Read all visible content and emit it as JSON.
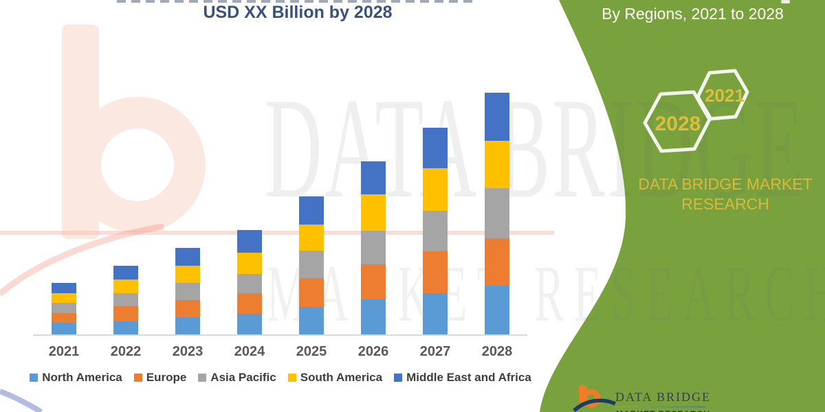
{
  "title": {
    "line2": "USD XX Billion by 2028"
  },
  "right_panel": {
    "bg_color": "#79A23E",
    "heading": "By Regions, 2021 to 2028",
    "hexagon_large": "2028",
    "hexagon_small": "2021",
    "brand_line1": "DATA BRIDGE MARKET",
    "brand_line2": "RESEARCH",
    "accent_color": "#DCBE3C"
  },
  "watermark": {
    "line1": "DATA BRIDGE",
    "line2": "MARKET RESEARCH"
  },
  "footer_logo": {
    "brand": "DATA BRIDGE",
    "subtext_clipped": "MARKET RESEARCH"
  },
  "chart_data": {
    "type": "bar",
    "stacked": true,
    "title": "USD XX Billion by 2028",
    "categories": [
      "2021",
      "2022",
      "2023",
      "2024",
      "2025",
      "2026",
      "2027",
      "2028"
    ],
    "series": [
      {
        "name": "North America",
        "color": "#5B9BD5",
        "values": [
          18,
          20,
          26,
          31,
          41,
          52,
          61,
          72
        ]
      },
      {
        "name": "Europe",
        "color": "#ED7D31",
        "values": [
          14,
          22,
          25,
          30,
          42,
          51,
          61,
          69
        ]
      },
      {
        "name": "Asia Pacific",
        "color": "#A5A5A5",
        "values": [
          15,
          19,
          25,
          28,
          40,
          49,
          59,
          73
        ]
      },
      {
        "name": "South America",
        "color": "#FFC000",
        "values": [
          14,
          20,
          25,
          31,
          38,
          53,
          62,
          69
        ]
      },
      {
        "name": "Middle East and Africa",
        "color": "#4472C4",
        "values": [
          15,
          20,
          26,
          33,
          41,
          48,
          59,
          70
        ]
      }
    ],
    "totals": [
      76,
      101,
      127,
      153,
      202,
      253,
      302,
      353
    ],
    "value_axis": {
      "visible": false,
      "note": "No y-axis labels shown; segment values estimated in relative units (actual values shown as USD XX Billion)"
    },
    "legend_position": "bottom",
    "gridlines": false
  }
}
